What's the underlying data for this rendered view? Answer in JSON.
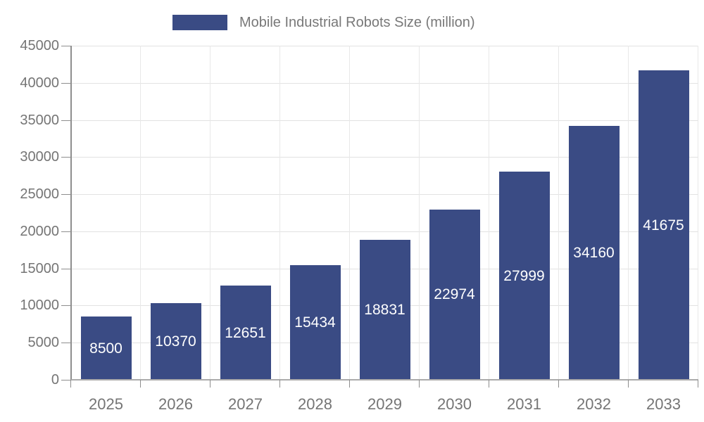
{
  "legend": {
    "label": "Mobile Industrial Robots Size (million)"
  },
  "colors": {
    "bar": "#3A4B84",
    "value_label": "#FFFFFF",
    "axis_label": "#757575",
    "legend_text": "#787878",
    "grid_horizontal": "#E2E2E2",
    "grid_vertical": "#E8E8E8",
    "y_axis_line": "#8E8E8E",
    "x_axis_line": "#ABABAB",
    "background": "#FFFFFF"
  },
  "chart_data": {
    "type": "bar",
    "title": "",
    "xlabel": "",
    "ylabel": "",
    "categories": [
      "2025",
      "2026",
      "2027",
      "2028",
      "2029",
      "2030",
      "2031",
      "2032",
      "2033"
    ],
    "series": [
      {
        "name": "Mobile Industrial Robots Size (million)",
        "values": [
          8500,
          10370,
          12651,
          15434,
          18831,
          22974,
          27999,
          34160,
          41675
        ]
      }
    ],
    "ylim": [
      0,
      45000
    ],
    "ytick_step": 5000,
    "grid": true,
    "legend_position": "top",
    "bar_value_labels": true
  }
}
